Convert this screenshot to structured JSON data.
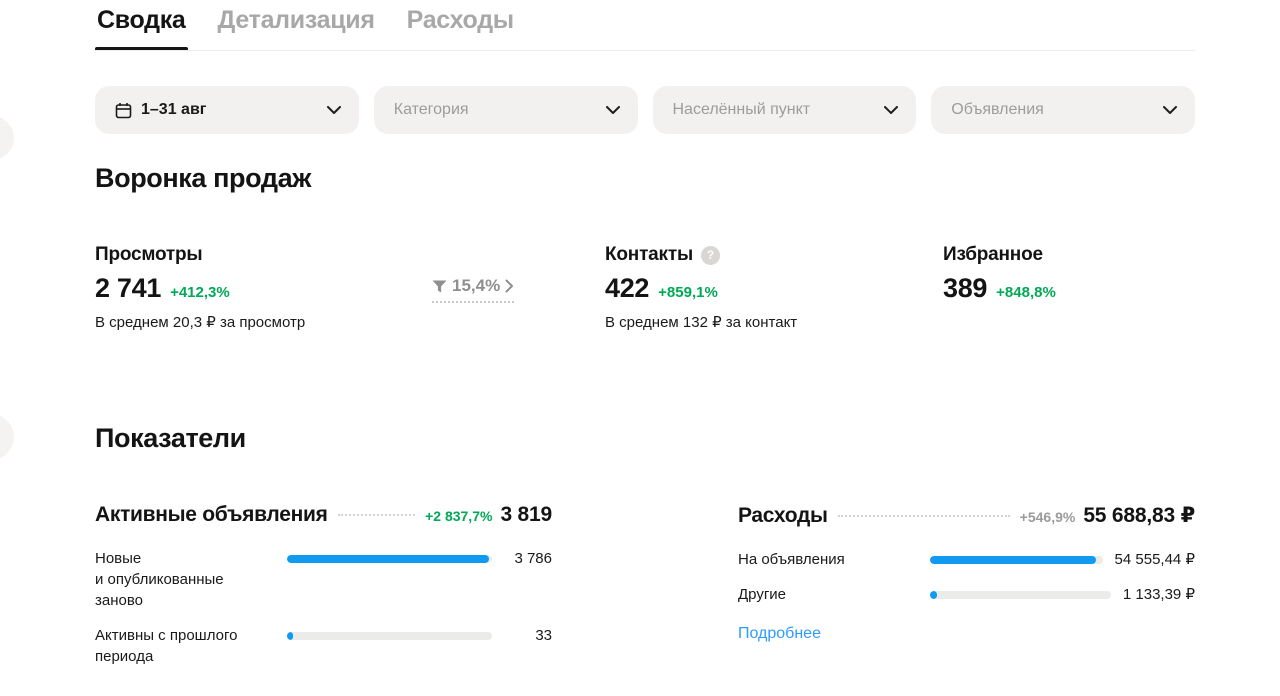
{
  "tabs": [
    {
      "label": "Сводка",
      "active": true
    },
    {
      "label": "Детализация",
      "active": false
    },
    {
      "label": "Расходы",
      "active": false
    }
  ],
  "filters": {
    "date": {
      "label": "1–31 авг"
    },
    "category": {
      "label": "Категория"
    },
    "location": {
      "label": "Населённый пункт"
    },
    "ads": {
      "label": "Объявления"
    }
  },
  "icons": {
    "help_glyph": "?"
  },
  "funnel": {
    "title": "Воронка продаж",
    "conversion": {
      "value": "15,4%"
    },
    "metrics": [
      {
        "label": "Просмотры",
        "value": "2 741",
        "delta": "+412,3%",
        "note": "В среднем 20,3 ₽ за просмотр"
      },
      {
        "label": "Контакты",
        "value": "422",
        "delta": "+859,1%",
        "note": "В среднем 132 ₽ за контакт"
      },
      {
        "label": "Избранное",
        "value": "389",
        "delta": "+848,8%"
      }
    ]
  },
  "indicators": {
    "title": "Показатели",
    "cards": [
      {
        "title": "Активные объявления",
        "delta": "+2 837,7%",
        "total": "3 819",
        "rows": [
          {
            "label": "Новые\nи опубликованные\nзаново",
            "value": "3 786",
            "pct": 98.5
          },
          {
            "label": "Активны с прошлого\nпериода",
            "value": "33",
            "pct": 3
          }
        ]
      },
      {
        "title": "Расходы",
        "delta": "+546,9%",
        "total": "55 688,83 ₽",
        "rows": [
          {
            "label": "На объявления",
            "value": "54 555,44 ₽",
            "pct": 96
          },
          {
            "label": "Другие",
            "value": "1 133,39 ₽",
            "pct": 4
          }
        ],
        "link": "Подробнее"
      }
    ]
  },
  "chart_data": {
    "type": "bar",
    "title": "Показатели",
    "series": [
      {
        "name": "Активные объявления",
        "total": 3819,
        "categories": [
          "Новые и опубликованные заново",
          "Активны с прошлого периода"
        ],
        "values": [
          3786,
          33
        ]
      },
      {
        "name": "Расходы, ₽",
        "total": 55688.83,
        "categories": [
          "На объявления",
          "Другие"
        ],
        "values": [
          54555.44,
          1133.39
        ]
      }
    ]
  },
  "colors": {
    "accent_blue": "#119BF0",
    "positive_green": "#00A956",
    "neutral_gray": "#9B9B9B",
    "link_blue": "#2E9BFF",
    "pill_bg": "#F2F1EF",
    "inactive_tab": "#A8A8A8"
  }
}
